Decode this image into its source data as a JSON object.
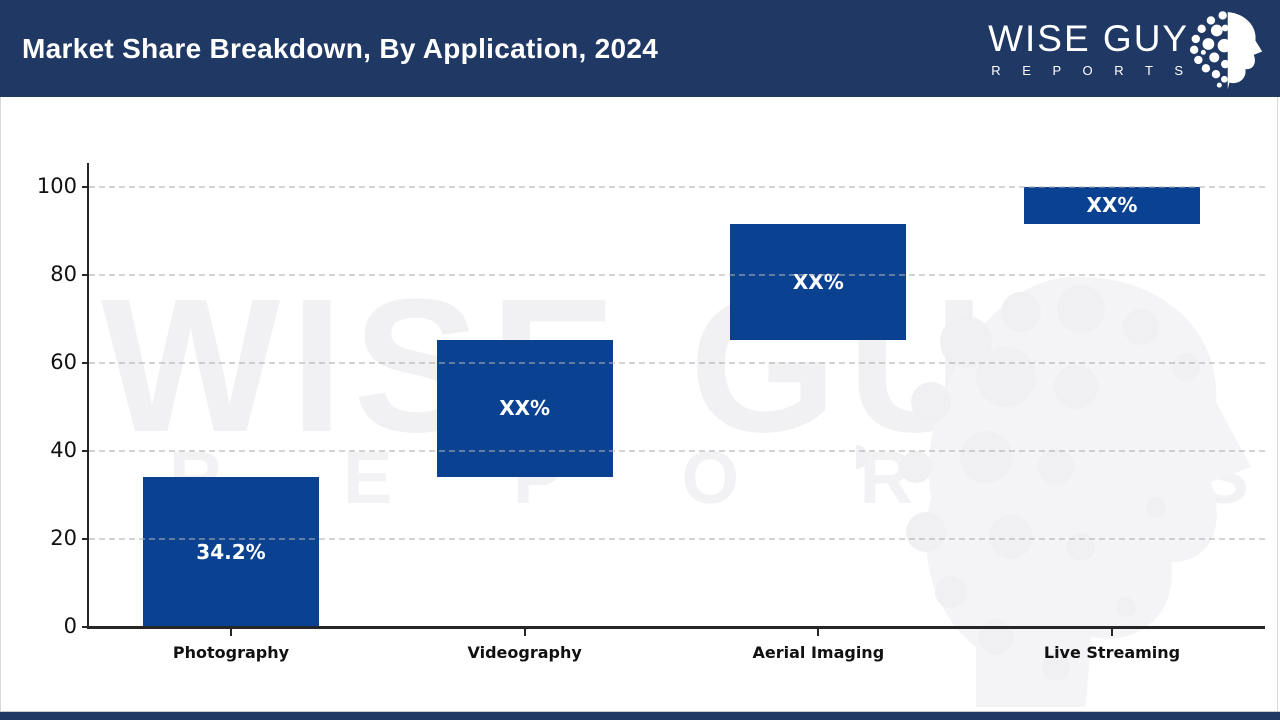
{
  "header": {
    "title": "Market Share Breakdown, By Application, 2024",
    "bg_color": "#1f3864",
    "logo": {
      "line1": "WISE GUY",
      "line2": "R E P O R T S"
    }
  },
  "watermark": {
    "line1": "WISE GU",
    "line2": "R E P O R T S"
  },
  "chart_data": {
    "type": "bar",
    "subtype": "floating-waterfall",
    "title": "Market Share Breakdown, By Application, 2024",
    "xlabel": "",
    "ylabel": "",
    "categories": [
      "Photography",
      "Videography",
      "Aerial Imaging",
      "Live Streaming"
    ],
    "series": [
      {
        "name": "Market Share %",
        "segments": [
          {
            "category": "Photography",
            "start": 0,
            "end": 34.2,
            "label": "34.2%"
          },
          {
            "category": "Videography",
            "start": 34.2,
            "end": 65.2,
            "label": "XX%"
          },
          {
            "category": "Aerial Imaging",
            "start": 65.2,
            "end": 91.6,
            "label": "XX%"
          },
          {
            "category": "Live Streaming",
            "start": 91.6,
            "end": 100,
            "label": "XX%"
          }
        ]
      }
    ],
    "y_ticks": [
      0,
      20,
      40,
      60,
      80,
      100
    ],
    "ylim": [
      0,
      105
    ],
    "grid": "horizontal-dashed",
    "legend": "none",
    "bar_color": "#0a4191",
    "bar_label_color": "#ffffff",
    "axis_color": "#262626",
    "grid_color": "#c8c8c8"
  }
}
